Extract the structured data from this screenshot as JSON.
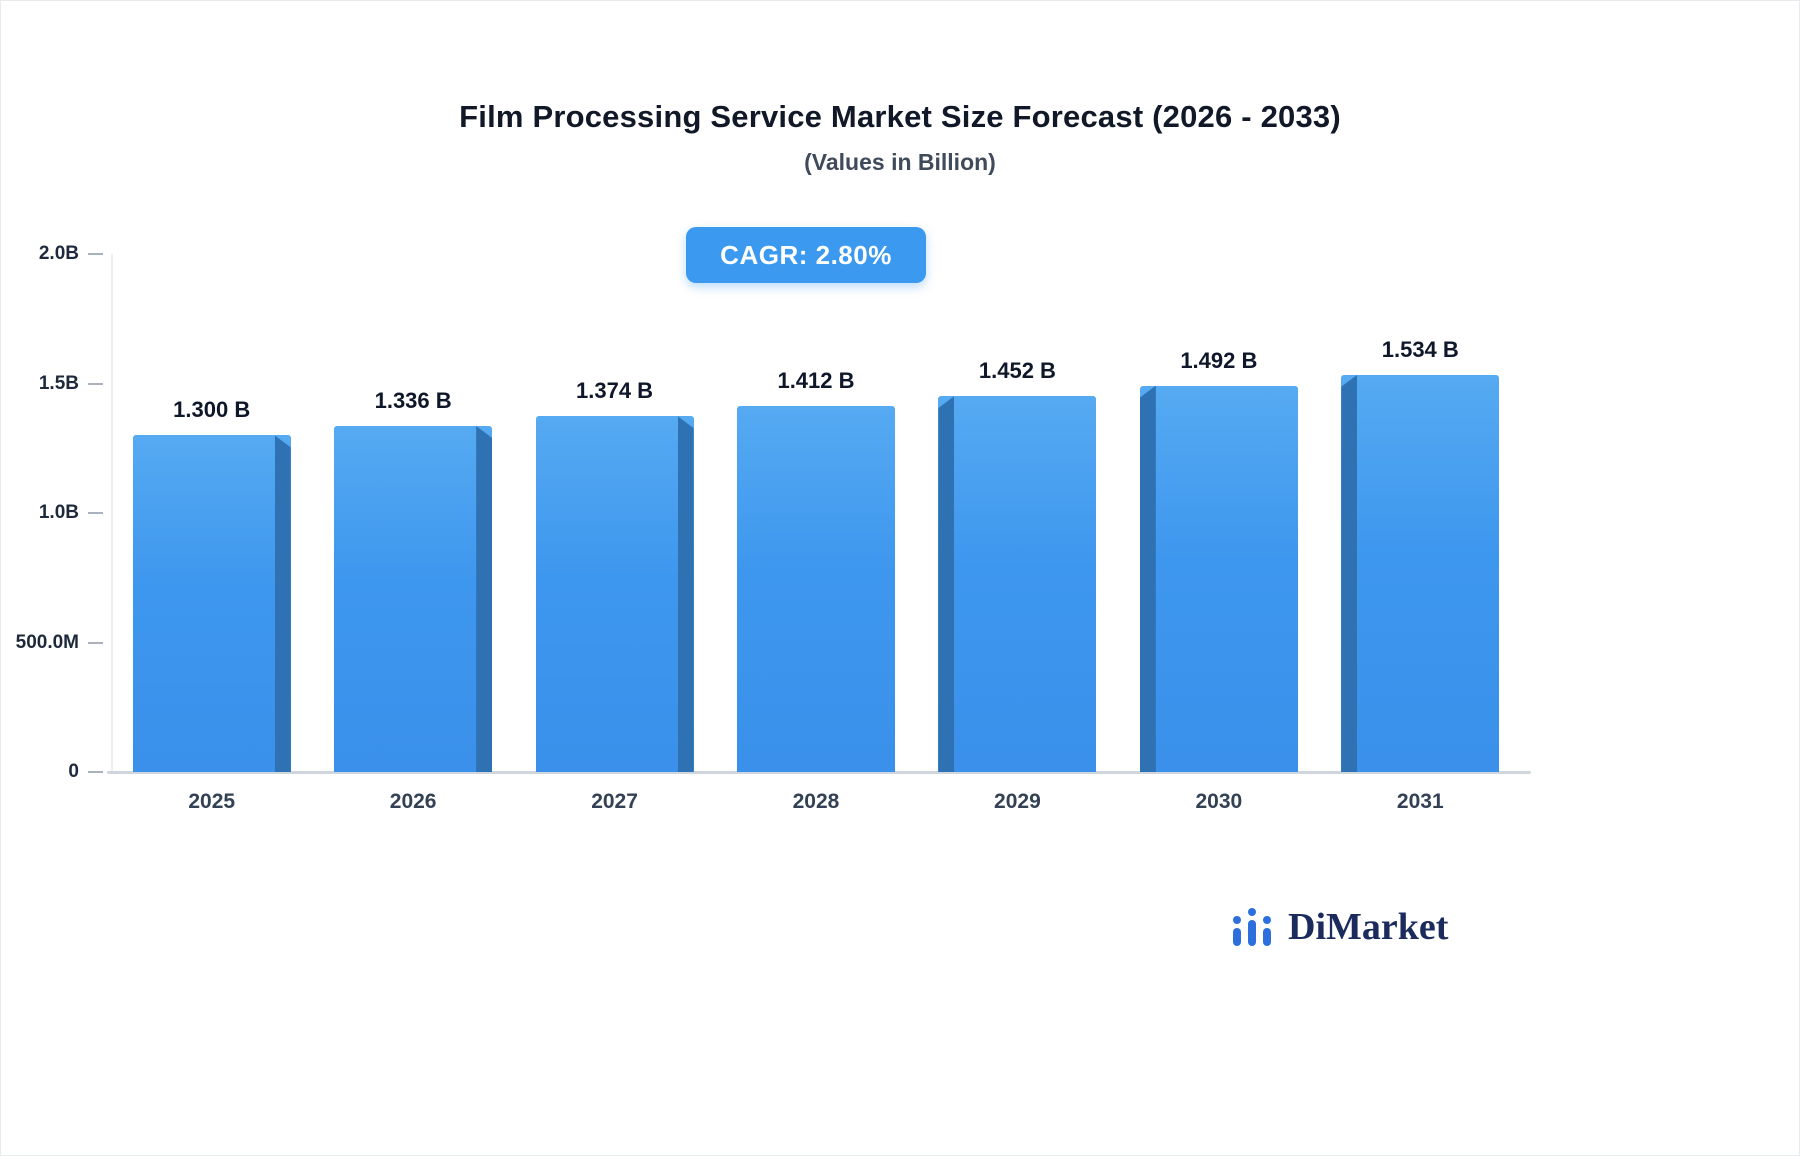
{
  "chart_data": {
    "type": "bar",
    "title": "Film Processing Service Market Size Forecast (2026 - 2033)",
    "subtitle": "(Values in Billion)",
    "cagr_label": "CAGR: 2.80%",
    "categories": [
      "2025",
      "2026",
      "2027",
      "2028",
      "2029",
      "2030",
      "2031"
    ],
    "values": [
      1.3,
      1.336,
      1.374,
      1.412,
      1.452,
      1.492,
      1.534
    ],
    "value_labels": [
      "1.300 B",
      "1.336 B",
      "1.374 B",
      "1.412 B",
      "1.452 B",
      "1.492 B",
      "1.534 B"
    ],
    "yticks": [
      {
        "label": "2.0B",
        "value": 2.0
      },
      {
        "label": "1.5B",
        "value": 1.5
      },
      {
        "label": "1.0B",
        "value": 1.0
      },
      {
        "label": "500.0M",
        "value": 0.5
      },
      {
        "label": "0",
        "value": 0
      }
    ],
    "ylim": [
      0,
      2.0
    ],
    "unit": "Billion",
    "legend": "none",
    "grid": "off",
    "bar_color": "#3e97ee",
    "bar_side_color": "#2e72b3",
    "accent_color": "#3b9af0"
  },
  "logo": {
    "text": "DiMarket"
  }
}
